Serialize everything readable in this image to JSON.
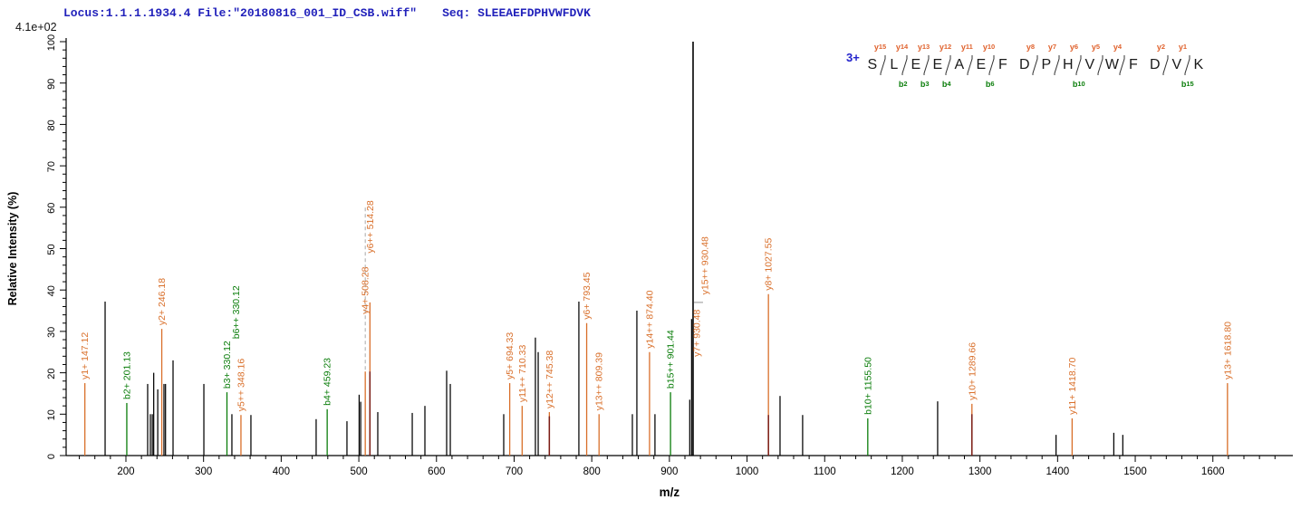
{
  "header": {
    "locus_file": "Locus:1.1.1.1934.4 File:\"20180816_001_ID_CSB.wiff\"",
    "seq": "Seq: SLEEAEFDPHVWFDVK",
    "intensity_scale": "4.1e+02"
  },
  "peptide_panel": {
    "charge": "3+",
    "sequence": "SLEEAEFDPHVWFDVK",
    "cleavages": [
      {
        "gap": 1,
        "y": "y15",
        "b": null
      },
      {
        "gap": 2,
        "y": "y14",
        "b": "b2"
      },
      {
        "gap": 3,
        "y": "y13",
        "b": "b3"
      },
      {
        "gap": 4,
        "y": "y12",
        "b": "b4"
      },
      {
        "gap": 5,
        "y": "y11",
        "b": null
      },
      {
        "gap": 6,
        "y": "y10",
        "b": "b6"
      },
      {
        "gap": 8,
        "y": "y8",
        "b": null
      },
      {
        "gap": 9,
        "y": "y7",
        "b": null
      },
      {
        "gap": 10,
        "y": "y6",
        "b": "b10"
      },
      {
        "gap": 11,
        "y": "y5",
        "b": null
      },
      {
        "gap": 12,
        "y": "y4",
        "b": null
      },
      {
        "gap": 14,
        "y": "y2",
        "b": null
      },
      {
        "gap": 15,
        "y": "y1",
        "b": "b15"
      }
    ]
  },
  "colors": {
    "header_blue": "#2222bb",
    "y_ion": "#d96f2a",
    "b_ion": "#0a7d0a",
    "overlap_dark": "#7b1c15",
    "peak_black": "#000000",
    "dash_gray": "#aaaaaa",
    "axis": "#000000"
  },
  "chart_data": {
    "type": "bar",
    "subtype": "ms2-fragment-stick-spectrum",
    "title": "",
    "xlabel": "m/z",
    "ylabel": "Relative  Intensity (%)",
    "xlim": [
      123,
      1703
    ],
    "ylim": [
      0,
      100
    ],
    "x_major_ticks": [
      200,
      300,
      400,
      500,
      600,
      700,
      800,
      900,
      1000,
      1100,
      1200,
      1300,
      1400,
      1500,
      1600
    ],
    "x_minor_step": 20,
    "y_major_ticks": [
      0,
      10,
      20,
      30,
      40,
      50,
      60,
      70,
      80,
      90,
      100
    ],
    "y_minor_step": 2,
    "grid": false,
    "peaks": [
      {
        "mz": 173.2,
        "h": 37.2
      },
      {
        "mz": 228.0,
        "h": 17.3
      },
      {
        "mz": 231.5,
        "h": 10.0
      },
      {
        "mz": 234.0,
        "h": 10.0
      },
      {
        "mz": 235.8,
        "h": 20.0
      },
      {
        "mz": 241.0,
        "h": 16.0
      },
      {
        "mz": 249.0,
        "h": 17.3
      },
      {
        "mz": 251.0,
        "h": 17.3
      },
      {
        "mz": 260.7,
        "h": 23.0
      },
      {
        "mz": 300.4,
        "h": 17.3
      },
      {
        "mz": 336.5,
        "h": 10.0
      },
      {
        "mz": 361.0,
        "h": 9.8
      },
      {
        "mz": 445.0,
        "h": 8.8
      },
      {
        "mz": 484.7,
        "h": 8.3
      },
      {
        "mz": 500.4,
        "h": 14.7
      },
      {
        "mz": 502.4,
        "h": 13.0
      },
      {
        "mz": 524.4,
        "h": 10.5
      },
      {
        "mz": 568.8,
        "h": 10.3
      },
      {
        "mz": 585.1,
        "h": 12.0
      },
      {
        "mz": 613.1,
        "h": 20.5
      },
      {
        "mz": 617.8,
        "h": 17.3
      },
      {
        "mz": 686.6,
        "h": 10.0
      },
      {
        "mz": 727.4,
        "h": 28.5
      },
      {
        "mz": 731.0,
        "h": 25.0
      },
      {
        "mz": 783.4,
        "h": 37.2
      },
      {
        "mz": 852.3,
        "h": 10.0
      },
      {
        "mz": 858.1,
        "h": 35.0
      },
      {
        "mz": 881.4,
        "h": 10.0
      },
      {
        "mz": 926.2,
        "h": 13.5
      },
      {
        "mz": 928.6,
        "h": 33.0
      },
      {
        "mz": 930.48,
        "h": 100.0
      },
      {
        "mz": 1042.5,
        "h": 14.4
      },
      {
        "mz": 1071.6,
        "h": 9.8
      },
      {
        "mz": 1245.5,
        "h": 13.1
      },
      {
        "mz": 1398.0,
        "h": 5.0
      },
      {
        "mz": 1472.4,
        "h": 5.5
      },
      {
        "mz": 1484.0,
        "h": 5.0
      }
    ],
    "ions": [
      {
        "label": "y1+ 147.12",
        "mz": 147.12,
        "series": "y",
        "line_h": 17.5
      },
      {
        "label": "b2+ 201.13",
        "mz": 201.13,
        "series": "b",
        "line_h": 12.7
      },
      {
        "label": "y2+ 246.18",
        "mz": 246.18,
        "series": "y",
        "line_h": 30.6
      },
      {
        "label": "b3+ 330.12",
        "mz": 330.12,
        "series": "b",
        "line_h": 15.3
      },
      {
        "label": "b6++ 330.12",
        "mz": 330.12,
        "series": "b",
        "line_h": 15.3,
        "no_line": true,
        "lift": 12,
        "dx": 10
      },
      {
        "label": "y5++ 348.16",
        "mz": 348.16,
        "series": "y",
        "line_h": 9.8
      },
      {
        "label": "b4+ 459.23",
        "mz": 459.23,
        "series": "b",
        "line_h": 11.2
      },
      {
        "label": "y4+ 508.28",
        "mz": 508.28,
        "series": "y",
        "line_h": 20.3,
        "lift": 13,
        "dash_to": 60
      },
      {
        "label": "y6++ 514.28",
        "mz": 514.28,
        "series": "y",
        "line_h": 37.0,
        "lift": 11,
        "dark_h": 20.3
      },
      {
        "label": "y5+ 694.33",
        "mz": 694.33,
        "series": "y",
        "line_h": 17.5
      },
      {
        "label": "y11++ 710.33",
        "mz": 710.33,
        "series": "y",
        "line_h": 12.0
      },
      {
        "label": "y12++ 745.38",
        "mz": 745.38,
        "series": "y",
        "line_h": 10.5,
        "dark_h": 9.5
      },
      {
        "label": "y6+ 793.45",
        "mz": 793.45,
        "series": "y",
        "line_h": 32.0
      },
      {
        "label": "y13++ 809.39",
        "mz": 809.39,
        "series": "y",
        "line_h": 10.0
      },
      {
        "label": "y14++ 874.40",
        "mz": 874.4,
        "series": "y",
        "line_h": 25.0
      },
      {
        "label": "b15++ 901.44",
        "mz": 901.44,
        "series": "b",
        "line_h": 15.3
      },
      {
        "label": "y7+ 930.48",
        "mz": 930.48,
        "series": "y",
        "line_h": 0,
        "no_line": true,
        "lift": 23,
        "dx": 4
      },
      {
        "label": "y15++ 930.48",
        "mz": 930.48,
        "series": "y",
        "line_h": 0,
        "no_line": true,
        "lift": 38,
        "dx": 13,
        "connector": true
      },
      {
        "label": "y8+ 1027.55",
        "mz": 1027.55,
        "series": "y",
        "line_h": 39.0,
        "dark_h": 9.8
      },
      {
        "label": "b10+ 1155.50",
        "mz": 1155.5,
        "series": "b",
        "line_h": 9.0
      },
      {
        "label": "y10+ 1289.66",
        "mz": 1289.66,
        "series": "y",
        "line_h": 12.5,
        "dark_h": 10.0
      },
      {
        "label": "y11+ 1418.70",
        "mz": 1418.7,
        "series": "y",
        "line_h": 9.0
      },
      {
        "label": "y13+ 1618.80",
        "mz": 1618.8,
        "series": "y",
        "line_h": 17.5
      }
    ]
  }
}
